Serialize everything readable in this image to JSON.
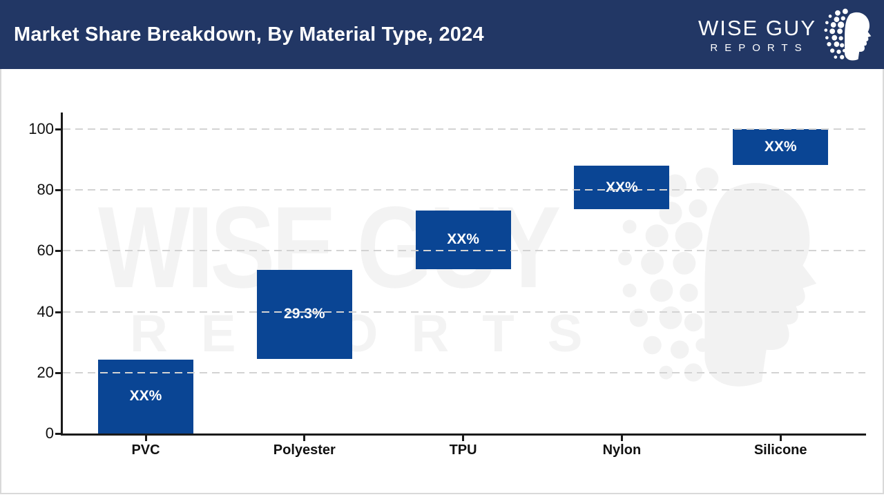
{
  "header": {
    "title": "Market Share Breakdown, By Material Type, 2024",
    "background_color": "#223765",
    "logo_line1": "WISE GUY",
    "logo_line2": "REPORTS"
  },
  "watermark": {
    "line1": "WISE GUY",
    "line2": "REPORTS"
  },
  "chart_data": {
    "type": "bar",
    "subtype": "waterfall",
    "title": "Market Share Breakdown, By Material Type, 2024",
    "categories": [
      "PVC",
      "Polyester",
      "TPU",
      "Nylon",
      "Silicone"
    ],
    "bars": [
      {
        "category": "PVC",
        "start": 0,
        "end": 24.3,
        "label": "XX%"
      },
      {
        "category": "Polyester",
        "start": 24.5,
        "end": 53.8,
        "label": "29.3%"
      },
      {
        "category": "TPU",
        "start": 54.0,
        "end": 73.3,
        "label": "XX%"
      },
      {
        "category": "Nylon",
        "start": 73.6,
        "end": 87.9,
        "label": "XX%"
      },
      {
        "category": "Silicone",
        "start": 88.1,
        "end": 100.0,
        "label": "XX%"
      }
    ],
    "ylim": [
      0,
      100
    ],
    "yticks": [
      0,
      20,
      40,
      60,
      80,
      100
    ],
    "grid": {
      "horizontal": true,
      "style": "dashed",
      "color": "#d3d3d3",
      "drawn_over_bars": true
    },
    "bar_color": "#0a4594",
    "bar_label_color": "#ffffff",
    "axis_color": "#1a1a1a",
    "legend": "none"
  }
}
